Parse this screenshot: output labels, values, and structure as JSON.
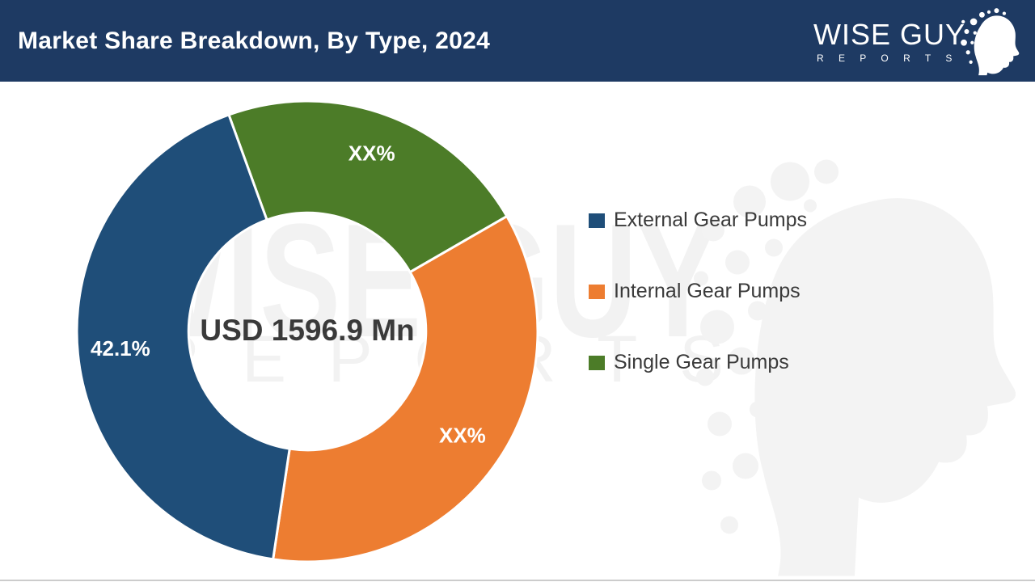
{
  "header": {
    "title": "Market Share Breakdown, By Type, 2024",
    "logo": {
      "line1": "WISE GUY",
      "line2": "R E P O R T S"
    },
    "bg_color": "#1E3A63"
  },
  "watermark": {
    "line1": "WISE GUY",
    "line2": "REPORTS"
  },
  "chart_data": {
    "type": "pie",
    "subtype": "donut",
    "title": "Market Share Breakdown, By Type, 2024",
    "center_label": "USD 1596.9 Mn",
    "start_angle_deg": -19.9,
    "inner_radius_ratio": 0.515,
    "legend_position": "right",
    "segments": [
      {
        "name": "External Gear Pumps",
        "value_pct": 42.1,
        "display_label": "42.1%",
        "color": "#1F4E79"
      },
      {
        "name": "Internal Gear Pumps",
        "value_pct": 35.7,
        "display_label": "XX%",
        "color": "#ED7D31"
      },
      {
        "name": "Single Gear Pumps",
        "value_pct": 22.2,
        "display_label": "XX%",
        "color": "#4C7C28"
      }
    ],
    "draw_order_clockwise_from_start": [
      "Single Gear Pumps",
      "Internal Gear Pumps",
      "External Gear Pumps"
    ]
  },
  "colors": {
    "header_bg": "#1E3A63",
    "text_dark": "#3a3a3a",
    "watermark": "#f2f2f2",
    "bottom_rule": "#cccccc"
  }
}
